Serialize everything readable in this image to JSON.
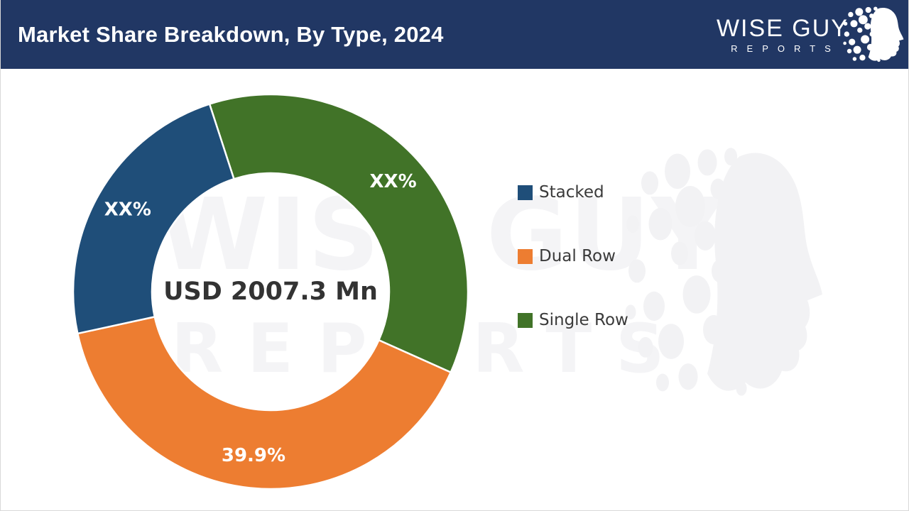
{
  "header": {
    "title": "Market Share Breakdown, By Type, 2024",
    "logo": {
      "line1": "WISE GUY",
      "line2": "REPORTS"
    }
  },
  "watermark": {
    "line1": "WISE GUY",
    "line2": "REPORTS"
  },
  "chart_data": {
    "type": "pie",
    "donut": true,
    "title": "Market Share Breakdown, By Type, 2024",
    "center_label": "USD 2007.3 Mn",
    "start_angle_deg": -18,
    "units": "percent of market share",
    "slices": [
      {
        "name": "Single Row",
        "value": 36.7,
        "label": "XX%",
        "color": "#417328"
      },
      {
        "name": "Dual Row",
        "value": 39.9,
        "label": "39.9%",
        "color": "#ED7D31"
      },
      {
        "name": "Stacked",
        "value": 23.4,
        "label": "XX%",
        "color": "#1F4E79"
      }
    ],
    "legend": {
      "position": "right",
      "items": [
        {
          "label": "Stacked",
          "color": "#1F4E79"
        },
        {
          "label": "Dual Row",
          "color": "#ED7D31"
        },
        {
          "label": "Single Row",
          "color": "#417328"
        }
      ]
    }
  }
}
